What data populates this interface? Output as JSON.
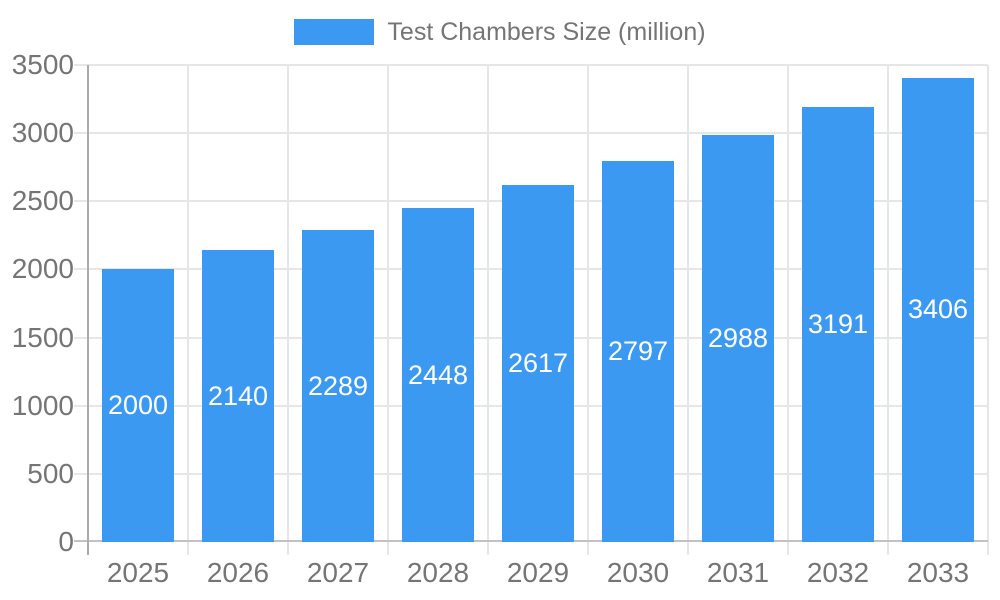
{
  "chart_data": {
    "type": "bar",
    "title": "",
    "legend_label": "Test Chambers Size (million)",
    "legend_position": "top",
    "categories": [
      "2025",
      "2026",
      "2027",
      "2028",
      "2029",
      "2030",
      "2031",
      "2032",
      "2033"
    ],
    "values": [
      2000,
      2140,
      2289,
      2448,
      2617,
      2797,
      2988,
      3191,
      3406
    ],
    "xlabel": "",
    "ylabel": "",
    "ylim": [
      0,
      3500
    ],
    "ytick_step": 500,
    "yticks": [
      "0",
      "500",
      "1000",
      "1500",
      "2000",
      "2500",
      "3000",
      "3500"
    ],
    "grid": true,
    "value_labels_inside_bars": true,
    "colors": {
      "bar": "#3B99F1",
      "label_text": "#757575",
      "bar_value_text": "#FFFFFF",
      "gridline": "#E6E6E6",
      "axis_line": "#ABABAB",
      "zero_line": "#C2C2C2"
    }
  }
}
